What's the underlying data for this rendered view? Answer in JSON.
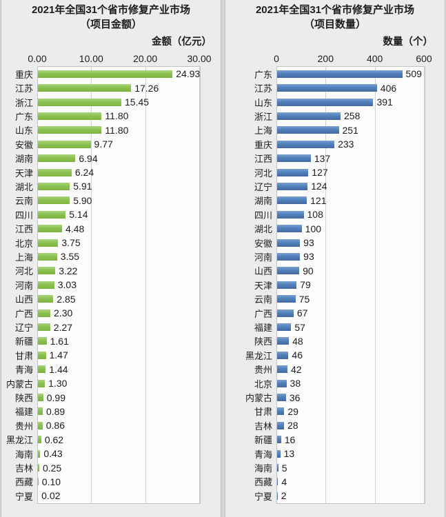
{
  "chart_data": [
    {
      "type": "bar",
      "orientation": "horizontal",
      "title": "2021年全国31个省市修复产业市场",
      "subtitle": "（项目金额）",
      "axis_label": "金额（亿元）",
      "xlim": [
        0,
        30
      ],
      "tick_values": [
        0,
        10,
        20,
        30
      ],
      "tick_labels": [
        "0.00",
        "10.00",
        "20.00",
        "30.00"
      ],
      "grid": true,
      "bar_color": "#8cc153",
      "bar_color_light": "#a9d57c",
      "bar_color_dark": "#7cb43f",
      "categories": [
        "重庆",
        "江苏",
        "浙江",
        "广东",
        "山东",
        "安徽",
        "湖南",
        "天津",
        "湖北",
        "云南",
        "四川",
        "江西",
        "北京",
        "上海",
        "河北",
        "河南",
        "山西",
        "广西",
        "辽宁",
        "新疆",
        "甘肃",
        "青海",
        "内蒙古",
        "陕西",
        "福建",
        "贵州",
        "黑龙江",
        "海南",
        "吉林",
        "西藏",
        "宁夏"
      ],
      "values": [
        24.93,
        17.26,
        15.45,
        11.8,
        11.8,
        9.77,
        6.94,
        6.24,
        5.91,
        5.9,
        5.14,
        4.48,
        3.75,
        3.55,
        3.22,
        3.03,
        2.85,
        2.3,
        2.27,
        1.61,
        1.47,
        1.44,
        1.3,
        0.99,
        0.89,
        0.86,
        0.62,
        0.43,
        0.25,
        0.1,
        0.02
      ],
      "value_labels": [
        "24.93",
        "17.26",
        "15.45",
        "11.80",
        "11.80",
        "9.77",
        "6.94",
        "6.24",
        "5.91",
        "5.90",
        "5.14",
        "4.48",
        "3.75",
        "3.55",
        "3.22",
        "3.03",
        "2.85",
        "2.30",
        "2.27",
        "1.61",
        "1.47",
        "1.44",
        "1.30",
        "0.99",
        "0.89",
        "0.86",
        "0.62",
        "0.43",
        "0.25",
        "0.10",
        "0.02"
      ]
    },
    {
      "type": "bar",
      "orientation": "horizontal",
      "title": "2021年全国31个省市修复产业市场",
      "subtitle": "（项目数量）",
      "axis_label": "数量（个）",
      "xlim": [
        0,
        600
      ],
      "tick_values": [
        0,
        200,
        400,
        600
      ],
      "tick_labels": [
        "0",
        "200",
        "400",
        "600"
      ],
      "grid": true,
      "bar_color": "#4f81bd",
      "bar_color_light": "#7aa0d0",
      "bar_color_dark": "#44699f",
      "categories": [
        "广东",
        "江苏",
        "山东",
        "浙江",
        "上海",
        "重庆",
        "江西",
        "河北",
        "辽宁",
        "湖南",
        "四川",
        "湖北",
        "安徽",
        "河南",
        "山西",
        "天津",
        "云南",
        "广西",
        "福建",
        "陕西",
        "黑龙江",
        "贵州",
        "北京",
        "内蒙古",
        "甘肃",
        "吉林",
        "新疆",
        "青海",
        "海南",
        "西藏",
        "宁夏"
      ],
      "values": [
        509,
        406,
        391,
        258,
        251,
        233,
        137,
        127,
        124,
        121,
        108,
        100,
        93,
        93,
        90,
        79,
        75,
        67,
        57,
        48,
        46,
        42,
        38,
        36,
        29,
        28,
        16,
        13,
        5,
        4,
        2
      ],
      "value_labels": [
        "509",
        "406",
        "391",
        "258",
        "251",
        "233",
        "137",
        "127",
        "124",
        "121",
        "108",
        "100",
        "93",
        "93",
        "90",
        "79",
        "75",
        "67",
        "57",
        "48",
        "46",
        "42",
        "38",
        "36",
        "29",
        "28",
        "16",
        "13",
        "5",
        "4",
        "2"
      ]
    }
  ]
}
